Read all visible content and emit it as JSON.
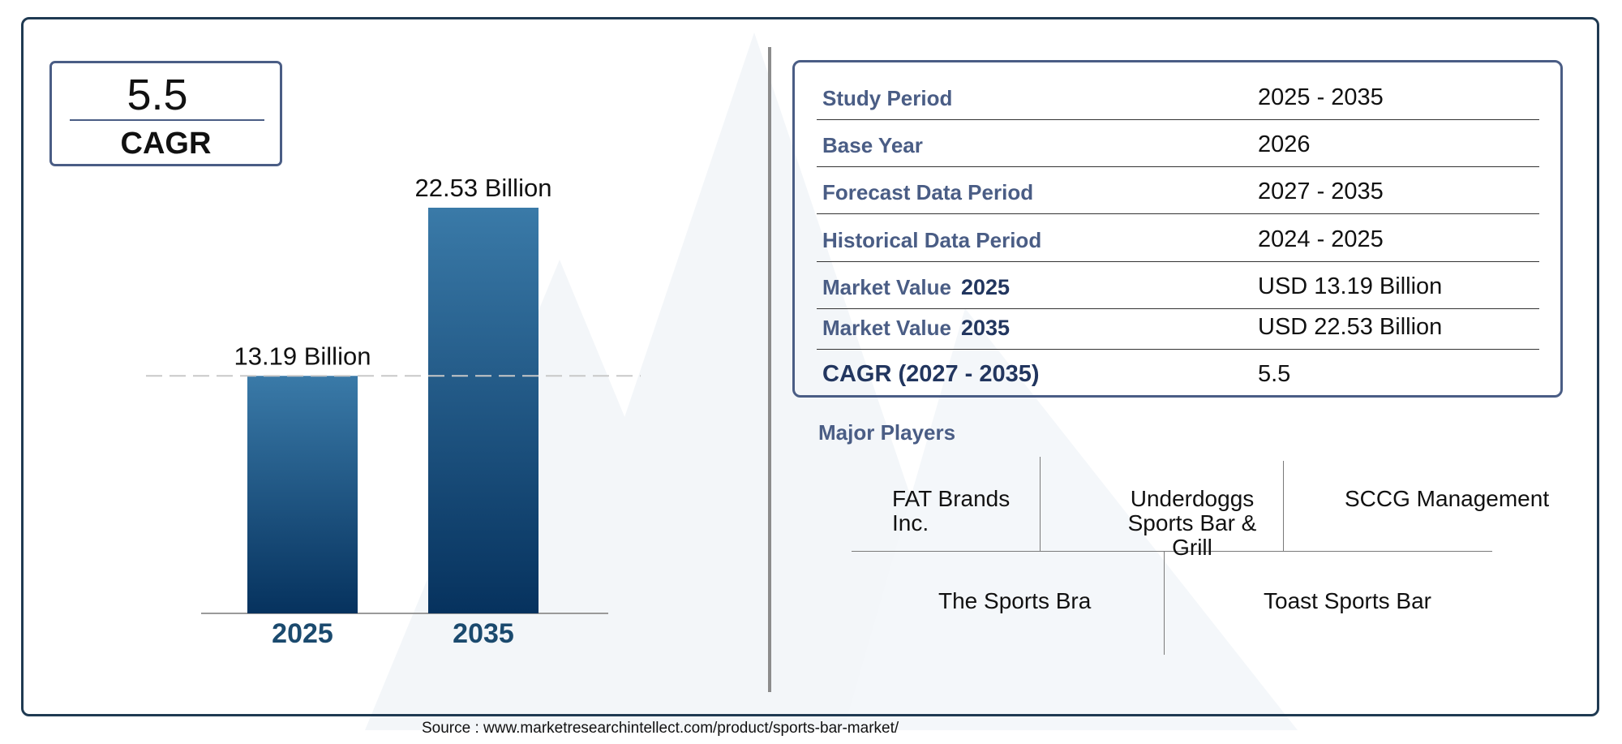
{
  "cagr_card": {
    "value": "5.5",
    "label": "CAGR"
  },
  "chart_data": {
    "type": "bar",
    "categories": [
      "2025",
      "2035"
    ],
    "values": [
      13.19,
      22.53
    ],
    "data_labels": [
      "13.19 Billion",
      "22.53 Billion"
    ],
    "title": "",
    "xlabel": "",
    "ylabel": "",
    "ylim": [
      0,
      22.53
    ],
    "reference_line": 13.19,
    "grid": false,
    "colors": {
      "bar_top": "#3a7aa8",
      "bar_bottom": "#06325e",
      "category_text": "#1b4a6e"
    }
  },
  "info_table": [
    {
      "label": "Study Period",
      "year": "",
      "value": "2025 - 2035"
    },
    {
      "label": "Base Year",
      "year": "",
      "value": "2026"
    },
    {
      "label": "Forecast Data Period",
      "year": "",
      "value": "2027 - 2035"
    },
    {
      "label": "Historical Data Period",
      "year": "",
      "value": "2024 - 2025"
    },
    {
      "label": "Market Value",
      "year": "2025",
      "value": "USD 13.19 Billion"
    },
    {
      "label": "Market Value",
      "year": "2035",
      "value": "USD 22.53 Billion"
    },
    {
      "label": "CAGR (2027 - 2035)",
      "year": "",
      "value": "5.5"
    }
  ],
  "major_players": {
    "title": "Major Players",
    "items": [
      "FAT Brands Inc.",
      "Underdoggs Sports Bar & Grill",
      "SCCG Management",
      "The Sports Bra",
      "Toast Sports Bar"
    ]
  },
  "source": "Source : www.marketresearchintellect.com/product/sports-bar-market/",
  "colors": {
    "frame": "#1f3a52",
    "accent": "#4a5d85",
    "navy": "#22365f"
  }
}
